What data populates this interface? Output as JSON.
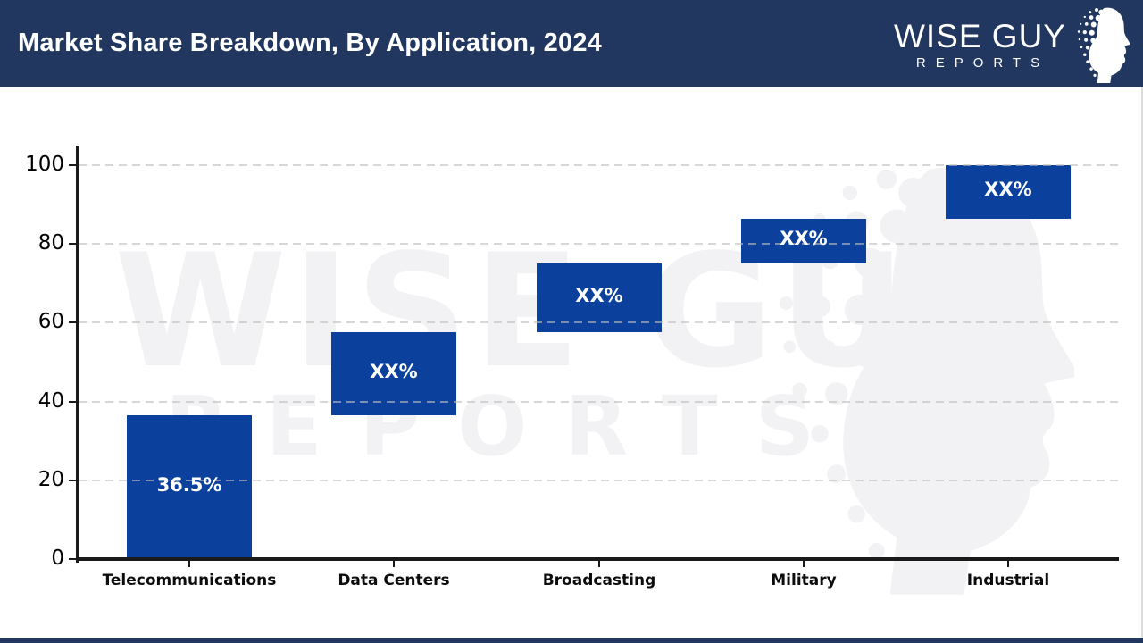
{
  "header": {
    "title": "Market Share Breakdown, By Application, 2024",
    "bg_color": "#21375f",
    "title_color": "#ffffff"
  },
  "logo": {
    "line1": "WISE GUY",
    "line2": "REPORTS"
  },
  "watermark": {
    "line1": "WISE GUY",
    "line2": "REPORTS",
    "color": "#f2f2f5"
  },
  "footer": {
    "bar_color": "#21375f"
  },
  "chart_data": {
    "type": "bar",
    "subtype": "waterfall-cumulative",
    "title": "Market Share Breakdown, By Application, 2024",
    "categories": [
      "Telecommunications",
      "Data Centers",
      "Broadcasting",
      "Military",
      "Industrial"
    ],
    "segments": [
      {
        "category": "Telecommunications",
        "start": 0,
        "end": 36.5,
        "value": 36.5,
        "label": "36.5%"
      },
      {
        "category": "Data Centers",
        "start": 36.5,
        "end": 57.5,
        "value": 21.0,
        "label": "XX%"
      },
      {
        "category": "Broadcasting",
        "start": 57.5,
        "end": 75.0,
        "value": 17.5,
        "label": "XX%"
      },
      {
        "category": "Military",
        "start": 75.0,
        "end": 86.5,
        "value": 11.5,
        "label": "XX%"
      },
      {
        "category": "Industrial",
        "start": 86.5,
        "end": 100.0,
        "value": 13.5,
        "label": "XX%"
      }
    ],
    "yticks": [
      0,
      20,
      40,
      60,
      80,
      100
    ],
    "ylim": [
      0,
      105
    ],
    "xlabel": "",
    "ylabel": "",
    "unit": "%",
    "grid": "horizontal-dashed",
    "grid_color": "#d9d9d9",
    "legend": "none",
    "bar_color": "#0b409d",
    "bar_label_color": "#ffffff",
    "axis_color": "#1a1a1a"
  }
}
